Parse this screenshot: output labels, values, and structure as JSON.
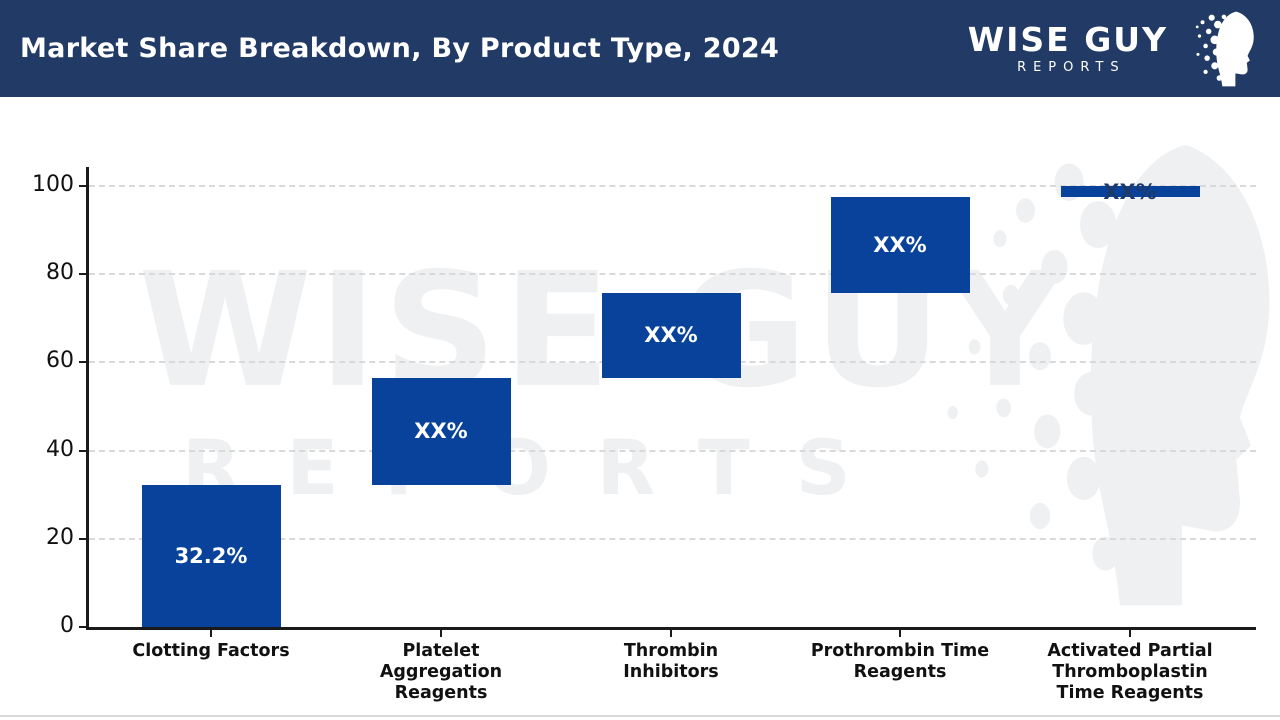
{
  "header": {
    "title": "Market Share Breakdown, By Product Type, 2024",
    "logo_line1": "WISE GUY",
    "logo_line2": "REPORTS"
  },
  "watermark": {
    "line1": "WISE GUY",
    "line2": "REPORTS"
  },
  "colors": {
    "header_bg": "#213a66",
    "bar": "#09429b",
    "grid": "#d9d9d9",
    "axis": "#1a1a1a",
    "label_inside": "#ffffff",
    "label_outside": "#1b3a6b",
    "watermark": "#eff0f2",
    "tick_text": "#111111"
  },
  "chart_data": {
    "type": "bar",
    "subtype": "waterfall-stacked-percentage",
    "title": "Market Share Breakdown, By Product Type, 2024",
    "categories": [
      "Clotting Factors",
      "Platelet Aggregation Reagents",
      "Thrombin Inhibitors",
      "Prothrombin Time Reagents",
      "Activated Partial Thromboplastin Time Reagents"
    ],
    "category_lines": [
      [
        "Clotting Factors"
      ],
      [
        "Platelet",
        "Aggregation",
        "Reagents"
      ],
      [
        "Thrombin",
        "Inhibitors"
      ],
      [
        "Prothrombin Time",
        "Reagents"
      ],
      [
        "Activated Partial",
        "Thromboplastin",
        "Time Reagents"
      ]
    ],
    "segments": [
      {
        "category": "Clotting Factors",
        "start": 0,
        "end": 32.2,
        "label": "32.2%",
        "label_position": "inside"
      },
      {
        "category": "Platelet Aggregation Reagents",
        "start": 32.2,
        "end": 56.5,
        "label": "XX%",
        "label_position": "inside"
      },
      {
        "category": "Thrombin Inhibitors",
        "start": 56.5,
        "end": 75.8,
        "label": "XX%",
        "label_position": "inside"
      },
      {
        "category": "Prothrombin Time Reagents",
        "start": 75.8,
        "end": 97.5,
        "label": "XX%",
        "label_position": "inside"
      },
      {
        "category": "Activated Partial Thromboplastin Time Reagents",
        "start": 97.5,
        "end": 100,
        "label": "XX%",
        "label_position": "overflow-dark"
      }
    ],
    "ylim": [
      0,
      100
    ],
    "yticks": [
      0,
      20,
      40,
      60,
      80,
      100
    ],
    "grid": "horizontal-dashed",
    "legend": "none"
  }
}
